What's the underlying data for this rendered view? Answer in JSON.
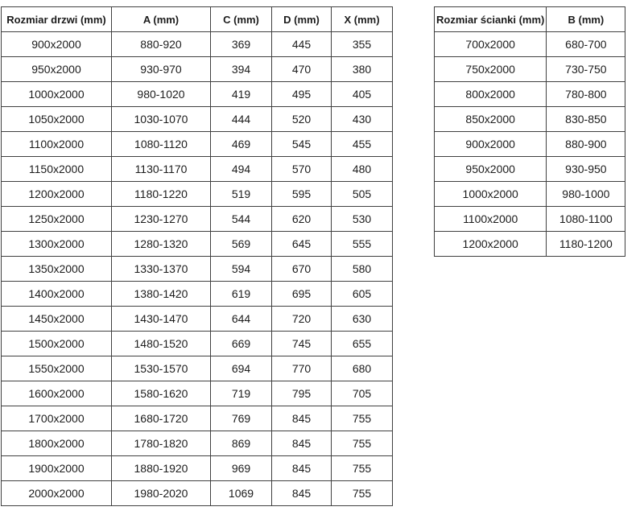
{
  "colors": {
    "border": "#404040",
    "text": "#1c1c1c",
    "background": "#ffffff"
  },
  "door_table": {
    "headers": [
      "Rozmiar drzwi (mm)",
      "A (mm)",
      "C (mm)",
      "D (mm)",
      "X (mm)"
    ],
    "rows": [
      [
        "900x2000",
        "880-920",
        "369",
        "445",
        "355"
      ],
      [
        "950x2000",
        "930-970",
        "394",
        "470",
        "380"
      ],
      [
        "1000x2000",
        "980-1020",
        "419",
        "495",
        "405"
      ],
      [
        "1050x2000",
        "1030-1070",
        "444",
        "520",
        "430"
      ],
      [
        "1100x2000",
        "1080-1120",
        "469",
        "545",
        "455"
      ],
      [
        "1150x2000",
        "1130-1170",
        "494",
        "570",
        "480"
      ],
      [
        "1200x2000",
        "1180-1220",
        "519",
        "595",
        "505"
      ],
      [
        "1250x2000",
        "1230-1270",
        "544",
        "620",
        "530"
      ],
      [
        "1300x2000",
        "1280-1320",
        "569",
        "645",
        "555"
      ],
      [
        "1350x2000",
        "1330-1370",
        "594",
        "670",
        "580"
      ],
      [
        "1400x2000",
        "1380-1420",
        "619",
        "695",
        "605"
      ],
      [
        "1450x2000",
        "1430-1470",
        "644",
        "720",
        "630"
      ],
      [
        "1500x2000",
        "1480-1520",
        "669",
        "745",
        "655"
      ],
      [
        "1550x2000",
        "1530-1570",
        "694",
        "770",
        "680"
      ],
      [
        "1600x2000",
        "1580-1620",
        "719",
        "795",
        "705"
      ],
      [
        "1700x2000",
        "1680-1720",
        "769",
        "845",
        "755"
      ],
      [
        "1800x2000",
        "1780-1820",
        "869",
        "845",
        "755"
      ],
      [
        "1900x2000",
        "1880-1920",
        "969",
        "845",
        "755"
      ],
      [
        "2000x2000",
        "1980-2020",
        "1069",
        "845",
        "755"
      ]
    ]
  },
  "wall_table": {
    "headers": [
      "Rozmiar ścianki (mm)",
      "B (mm)"
    ],
    "rows": [
      [
        "700x2000",
        "680-700"
      ],
      [
        "750x2000",
        "730-750"
      ],
      [
        "800x2000",
        "780-800"
      ],
      [
        "850x2000",
        "830-850"
      ],
      [
        "900x2000",
        "880-900"
      ],
      [
        "950x2000",
        "930-950"
      ],
      [
        "1000x2000",
        "980-1000"
      ],
      [
        "1100x2000",
        "1080-1100"
      ],
      [
        "1200x2000",
        "1180-1200"
      ]
    ]
  }
}
